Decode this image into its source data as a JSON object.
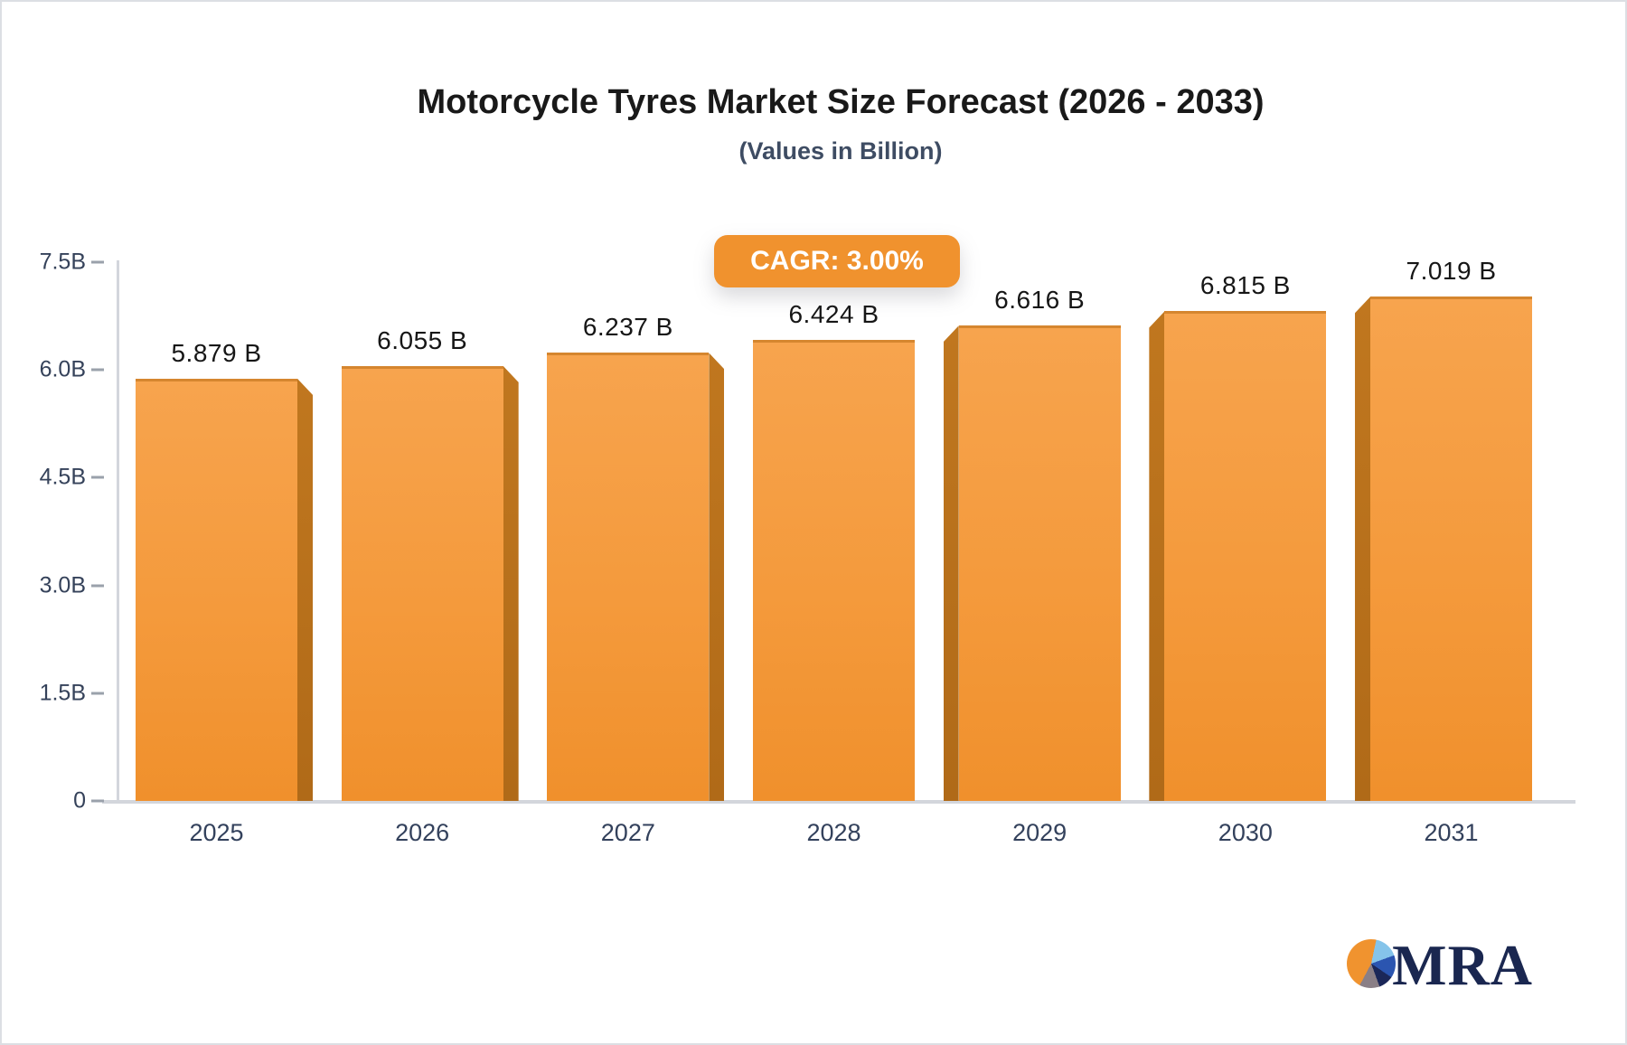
{
  "title": "Motorcycle Tyres Market Size Forecast (2026 - 2033)",
  "subtitle": "(Values in Billion)",
  "badge": {
    "cagr_label": "CAGR: 3.00%"
  },
  "logo": {
    "text": "MRA",
    "pie_icon": "pie-chart-icon"
  },
  "colors": {
    "title-color": "#191919",
    "subtitle-color": "#3e4c63",
    "badge-bg": "#f0922e",
    "axis-color": "#d3d6dc",
    "tick-text": "#35425a",
    "value-text": "#161616",
    "xlabel-text": "#33415c",
    "bar-top": "#f7a44e",
    "bar-mid": "#f49a3c",
    "bar-bottom": "#f0902c",
    "logo-navy": "#1a2750",
    "pie-lightblue": "#85c4ea",
    "pie-royal": "#2b55b0",
    "pie-navy": "#1b2758",
    "pie-gray": "#8a7f86",
    "pie-orange": "#f0932f"
  },
  "chart_data": {
    "type": "bar",
    "title": "Motorcycle Tyres Market Size Forecast (2026 - 2033)",
    "subtitle": "(Values in Billion)",
    "cagr": "CAGR: 3.00%",
    "categories": [
      "2025",
      "2026",
      "2027",
      "2028",
      "2029",
      "2030",
      "2031"
    ],
    "values": [
      5.879,
      6.055,
      6.237,
      6.424,
      6.616,
      6.815,
      7.019
    ],
    "value_labels": [
      "5.879 B",
      "6.055 B",
      "6.237 B",
      "6.424 B",
      "6.616 B",
      "6.815 B",
      "7.019 B"
    ],
    "ylabel": "",
    "xlabel": "",
    "ylim": [
      0,
      7.5
    ],
    "yticks": {
      "values": [
        0,
        1.5,
        3.0,
        4.5,
        6.0,
        7.5
      ],
      "labels": [
        "0",
        "1.5B",
        "3.0B",
        "4.5B",
        "6.0B",
        "7.5B"
      ]
    },
    "grid": false,
    "legend": false,
    "bar_style": "3d-extruded-orange"
  }
}
